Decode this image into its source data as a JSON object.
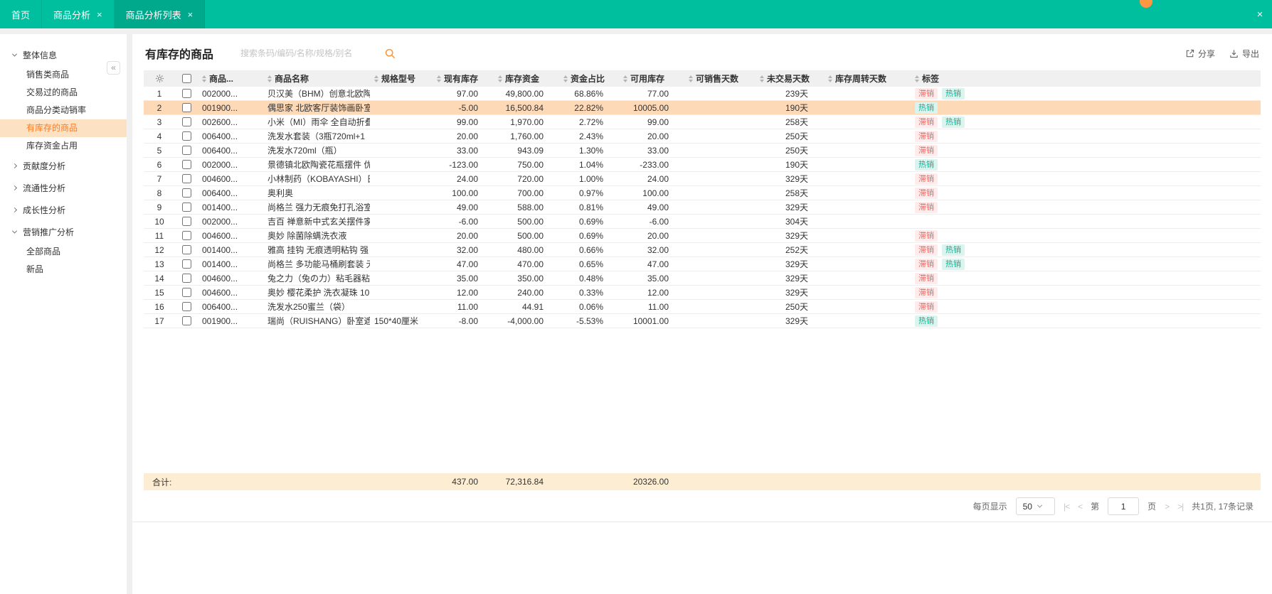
{
  "topbar": {
    "tabs": [
      {
        "label": "首页",
        "closable": false,
        "active": false
      },
      {
        "label": "商品分析",
        "closable": true,
        "active": false
      },
      {
        "label": "商品分析列表",
        "closable": true,
        "active": true
      }
    ],
    "close_icon": "×"
  },
  "sidebar": {
    "collapse_icon": "«",
    "groups": [
      {
        "label": "整体信息",
        "expanded": true,
        "active_child": "有库存的商品",
        "children": [
          "销售类商品",
          "交易过的商品",
          "商品分类动销率",
          "有库存的商品",
          "库存资金占用"
        ]
      },
      {
        "label": "贡献度分析",
        "expanded": false,
        "active_child": null,
        "children": []
      },
      {
        "label": "流通性分析",
        "expanded": false,
        "active_child": null,
        "children": []
      },
      {
        "label": "成长性分析",
        "expanded": false,
        "active_child": null,
        "children": []
      },
      {
        "label": "营销推广分析",
        "expanded": true,
        "active_child": null,
        "children": [
          "全部商品",
          "新品"
        ]
      }
    ]
  },
  "header": {
    "title": "有库存的商品",
    "search_placeholder": "搜索条码/编码/名称/规格/别名",
    "share_label": "分享",
    "export_label": "导出"
  },
  "table": {
    "columns": [
      "商品...",
      "商品名称",
      "规格型号",
      "现有库存",
      "库存资金",
      "资金占比",
      "可用库存",
      "可销售天数",
      "未交易天数",
      "库存周转天数",
      "标签"
    ],
    "tag_styles": {
      "滞销": {
        "color": "#f2635d",
        "bg": "#fdeceb"
      },
      "热销": {
        "color": "#00b796",
        "bg": "#dcf4ee"
      }
    },
    "rows": [
      {
        "idx": "1",
        "code": "002000...",
        "name": "贝汉美（BHM）创意北欧陶",
        "spec": "",
        "stock": "97.00",
        "fund": "49,800.00",
        "ratio": "68.86%",
        "avail": "77.00",
        "sale_days": "",
        "no_trade_days": "239天",
        "turnover_days": "",
        "tags": [
          "滞销",
          "热销"
        ],
        "selected": false
      },
      {
        "idx": "2",
        "code": "001900...",
        "name": "偶思家 北欧客厅装饰画卧室",
        "spec": "",
        "stock": "-5.00",
        "fund": "16,500.84",
        "ratio": "22.82%",
        "avail": "10005.00",
        "sale_days": "",
        "no_trade_days": "190天",
        "turnover_days": "",
        "tags": [
          "热销"
        ],
        "selected": true
      },
      {
        "idx": "3",
        "code": "002600...",
        "name": "小米（MI）雨伞 全自动折叠",
        "spec": "",
        "stock": "99.00",
        "fund": "1,970.00",
        "ratio": "2.72%",
        "avail": "99.00",
        "sale_days": "",
        "no_trade_days": "258天",
        "turnover_days": "",
        "tags": [
          "滞销",
          "热销"
        ],
        "selected": false
      },
      {
        "idx": "4",
        "code": "006400...",
        "name": "洗发水套装（3瓶720ml+1",
        "spec": "",
        "stock": "20.00",
        "fund": "1,760.00",
        "ratio": "2.43%",
        "avail": "20.00",
        "sale_days": "",
        "no_trade_days": "250天",
        "turnover_days": "",
        "tags": [
          "滞销"
        ],
        "selected": false
      },
      {
        "idx": "5",
        "code": "006400...",
        "name": "洗发水720ml（瓶）",
        "spec": "",
        "stock": "33.00",
        "fund": "943.09",
        "ratio": "1.30%",
        "avail": "33.00",
        "sale_days": "",
        "no_trade_days": "250天",
        "turnover_days": "",
        "tags": [
          "滞销"
        ],
        "selected": false
      },
      {
        "idx": "6",
        "code": "002000...",
        "name": "景德镇北欧陶瓷花瓶摆件 优",
        "spec": "",
        "stock": "-123.00",
        "fund": "750.00",
        "ratio": "1.04%",
        "avail": "-233.00",
        "sale_days": "",
        "no_trade_days": "190天",
        "turnover_days": "",
        "tags": [
          "热销"
        ],
        "selected": false
      },
      {
        "idx": "7",
        "code": "004600...",
        "name": "小林制药（KOBAYASHI）日",
        "spec": "",
        "stock": "24.00",
        "fund": "720.00",
        "ratio": "1.00%",
        "avail": "24.00",
        "sale_days": "",
        "no_trade_days": "329天",
        "turnover_days": "",
        "tags": [
          "滞销"
        ],
        "selected": false
      },
      {
        "idx": "8",
        "code": "006400...",
        "name": "奥利奥",
        "spec": "",
        "stock": "100.00",
        "fund": "700.00",
        "ratio": "0.97%",
        "avail": "100.00",
        "sale_days": "",
        "no_trade_days": "258天",
        "turnover_days": "",
        "tags": [
          "滞销"
        ],
        "selected": false
      },
      {
        "idx": "9",
        "code": "001400...",
        "name": "尚格兰 强力无痕免打孔浴室",
        "spec": "",
        "stock": "49.00",
        "fund": "588.00",
        "ratio": "0.81%",
        "avail": "49.00",
        "sale_days": "",
        "no_trade_days": "329天",
        "turnover_days": "",
        "tags": [
          "滞销"
        ],
        "selected": false
      },
      {
        "idx": "10",
        "code": "002000...",
        "name": "吉百 禅意新中式玄关摆件家",
        "spec": "",
        "stock": "-6.00",
        "fund": "500.00",
        "ratio": "0.69%",
        "avail": "-6.00",
        "sale_days": "",
        "no_trade_days": "304天",
        "turnover_days": "",
        "tags": [],
        "selected": false
      },
      {
        "idx": "11",
        "code": "004600...",
        "name": "奥妙 除菌除螨洗衣液",
        "spec": "",
        "stock": "20.00",
        "fund": "500.00",
        "ratio": "0.69%",
        "avail": "20.00",
        "sale_days": "",
        "no_trade_days": "329天",
        "turnover_days": "",
        "tags": [
          "滞销"
        ],
        "selected": false
      },
      {
        "idx": "12",
        "code": "001400...",
        "name": "雅高 挂钩 无痕透明粘钩 强",
        "spec": "",
        "stock": "32.00",
        "fund": "480.00",
        "ratio": "0.66%",
        "avail": "32.00",
        "sale_days": "",
        "no_trade_days": "252天",
        "turnover_days": "",
        "tags": [
          "滞销",
          "热销"
        ],
        "selected": false
      },
      {
        "idx": "13",
        "code": "001400...",
        "name": "尚格兰 多功能马桶刷套装 无",
        "spec": "",
        "stock": "47.00",
        "fund": "470.00",
        "ratio": "0.65%",
        "avail": "47.00",
        "sale_days": "",
        "no_trade_days": "329天",
        "turnover_days": "",
        "tags": [
          "滞销",
          "热销"
        ],
        "selected": false
      },
      {
        "idx": "14",
        "code": "004600...",
        "name": "兔之力（兔の力）粘毛器粘",
        "spec": "",
        "stock": "35.00",
        "fund": "350.00",
        "ratio": "0.48%",
        "avail": "35.00",
        "sale_days": "",
        "no_trade_days": "329天",
        "turnover_days": "",
        "tags": [
          "滞销"
        ],
        "selected": false
      },
      {
        "idx": "15",
        "code": "004600...",
        "name": "奥妙 樱花柔护 洗衣凝珠 10",
        "spec": "",
        "stock": "12.00",
        "fund": "240.00",
        "ratio": "0.33%",
        "avail": "12.00",
        "sale_days": "",
        "no_trade_days": "329天",
        "turnover_days": "",
        "tags": [
          "滞销"
        ],
        "selected": false
      },
      {
        "idx": "16",
        "code": "006400...",
        "name": "洗发水250蜜兰（袋）",
        "spec": "",
        "stock": "11.00",
        "fund": "44.91",
        "ratio": "0.06%",
        "avail": "11.00",
        "sale_days": "",
        "no_trade_days": "250天",
        "turnover_days": "",
        "tags": [
          "滞销"
        ],
        "selected": false
      },
      {
        "idx": "17",
        "code": "001900...",
        "name": "瑞尚（RUISHANG）卧室遮",
        "spec": "150*40厘米",
        "stock": "-8.00",
        "fund": "-4,000.00",
        "ratio": "-5.53%",
        "avail": "10001.00",
        "sale_days": "",
        "no_trade_days": "329天",
        "turnover_days": "",
        "tags": [
          "热销"
        ],
        "selected": false
      }
    ],
    "summary": {
      "label": "合计:",
      "stock": "437.00",
      "fund": "72,316.84",
      "avail": "20326.00"
    }
  },
  "pagination": {
    "size_label": "每页显示",
    "size_value": "50",
    "first_icon": "|<",
    "prev_icon": "<",
    "page_prefix": "第",
    "page_value": "1",
    "page_suffix": "页",
    "next_icon": ">",
    "last_icon": ">|",
    "total": "共1页, 17条记录"
  },
  "colors": {
    "accent": "#00bf9e",
    "selected_row": "#fed9b7",
    "sidebar_active_text": "#fb7c25"
  }
}
